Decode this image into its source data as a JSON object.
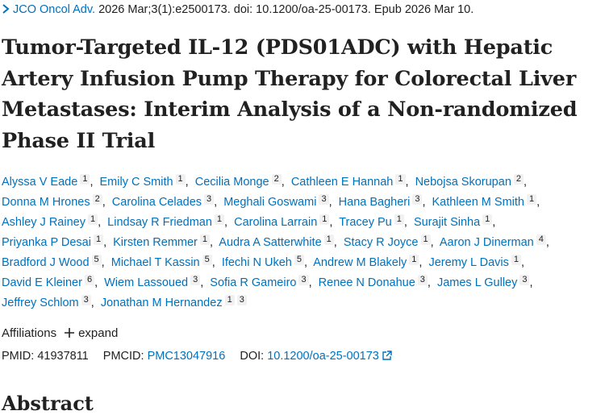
{
  "citation": {
    "journal": "JCO Oncol Adv.",
    "details": "2026 Mar;3(1):e2500173. doi: 10.1200/oa-25-00173. Epub 2026 Mar 10."
  },
  "title": "Tumor-Targeted IL-12 (PDS01ADC) with Hepatic Artery Infusion Pump Therapy for Colorectal Liver Metastases: Interim Analysis of a Non-randomized Phase II Trial",
  "authors": [
    {
      "name": "Alyssa V Eade",
      "affiliations": [
        1
      ]
    },
    {
      "name": "Emily C Smith",
      "affiliations": [
        1
      ]
    },
    {
      "name": "Cecilia Monge",
      "affiliations": [
        2
      ]
    },
    {
      "name": "Cathleen E Hannah",
      "affiliations": [
        1
      ]
    },
    {
      "name": "Nebojsa Skorupan",
      "affiliations": [
        2
      ]
    },
    {
      "name": "Donna M Hrones",
      "affiliations": [
        2
      ]
    },
    {
      "name": "Carolina Celades",
      "affiliations": [
        3
      ]
    },
    {
      "name": "Meghali Goswami",
      "affiliations": [
        3
      ]
    },
    {
      "name": "Hana Bagheri",
      "affiliations": [
        3
      ]
    },
    {
      "name": "Kathleen M Smith",
      "affiliations": [
        1
      ]
    },
    {
      "name": "Ashley J Rainey",
      "affiliations": [
        1
      ]
    },
    {
      "name": "Lindsay R Friedman",
      "affiliations": [
        1
      ]
    },
    {
      "name": "Carolina Larrain",
      "affiliations": [
        1
      ]
    },
    {
      "name": "Tracey Pu",
      "affiliations": [
        1
      ]
    },
    {
      "name": "Surajit Sinha",
      "affiliations": [
        1
      ]
    },
    {
      "name": "Priyanka P Desai",
      "affiliations": [
        1
      ]
    },
    {
      "name": "Kirsten Remmer",
      "affiliations": [
        1
      ]
    },
    {
      "name": "Audra A Satterwhite",
      "affiliations": [
        1
      ]
    },
    {
      "name": "Stacy R Joyce",
      "affiliations": [
        1
      ]
    },
    {
      "name": "Aaron J Dinerman",
      "affiliations": [
        4
      ]
    },
    {
      "name": "Bradford J Wood",
      "affiliations": [
        5
      ]
    },
    {
      "name": "Michael T Kassin",
      "affiliations": [
        5
      ]
    },
    {
      "name": "Ifechi N Ukeh",
      "affiliations": [
        5
      ]
    },
    {
      "name": "Andrew M Blakely",
      "affiliations": [
        1
      ]
    },
    {
      "name": "Jeremy L Davis",
      "affiliations": [
        1
      ]
    },
    {
      "name": "David E Kleiner",
      "affiliations": [
        6
      ]
    },
    {
      "name": "Wiem Lassoued",
      "affiliations": [
        3
      ]
    },
    {
      "name": "Sofia R Gameiro",
      "affiliations": [
        3
      ]
    },
    {
      "name": "Renee N Donahue",
      "affiliations": [
        3
      ]
    },
    {
      "name": "James L Gulley",
      "affiliations": [
        3
      ]
    },
    {
      "name": "Jeffrey Schlom",
      "affiliations": [
        3
      ]
    },
    {
      "name": "Jonathan M Hernandez",
      "affiliations": [
        1,
        3
      ]
    }
  ],
  "affiliations": {
    "label": "Affiliations",
    "toggle": "expand"
  },
  "identifiers": {
    "pmid_label": "PMID:",
    "pmid": "41937811",
    "pmcid_label": "PMCID:",
    "pmcid": "PMC13047916",
    "doi_label": "DOI:",
    "doi": "10.1200/oa-25-00173"
  },
  "next_heading": "Abstract"
}
